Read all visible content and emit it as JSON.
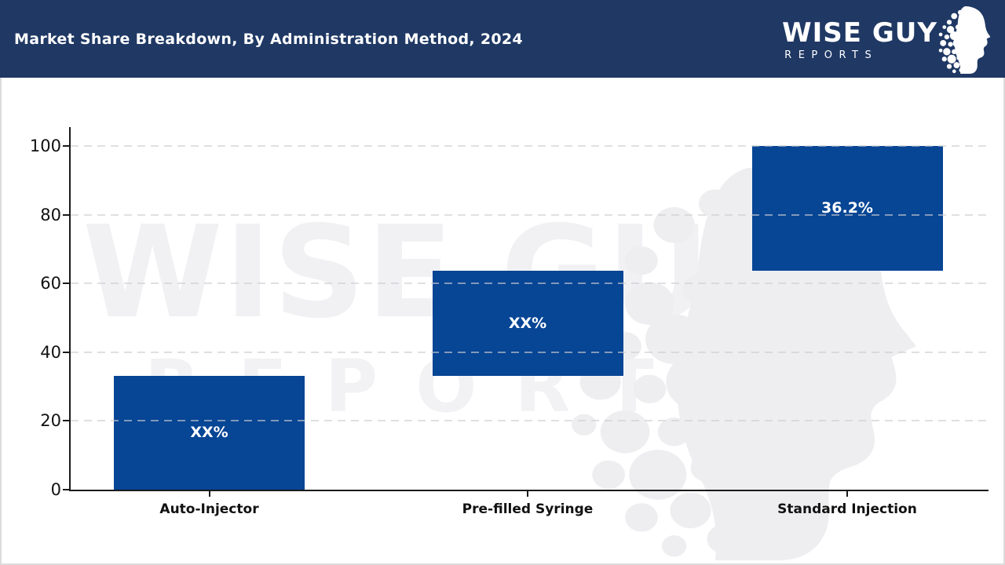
{
  "header": {
    "title": "Market Share Breakdown, By Administration Method, 2024",
    "logo": {
      "line1": "WISE GUY",
      "line2": "REPORTS"
    }
  },
  "watermark": {
    "line1": "WISE GUY",
    "line2": "REPORTS"
  },
  "chart_data": {
    "type": "waterfall",
    "title": "Market Share Breakdown, By Administration Method, 2024",
    "categories": [
      "Auto-Injector",
      "Pre-filled Syringe",
      "Standard Injection"
    ],
    "segments": [
      {
        "category": "Auto-Injector",
        "label": "XX%",
        "start": 0,
        "end": 33.2
      },
      {
        "category": "Pre-filled Syringe",
        "label": "XX%",
        "start": 33.2,
        "end": 63.8
      },
      {
        "category": "Standard Injection",
        "label": "36.2%",
        "start": 63.8,
        "end": 100
      }
    ],
    "ylim": [
      0,
      100
    ],
    "yticks": [
      0,
      20,
      40,
      60,
      80,
      100
    ],
    "grid": "dashed horizontal, drawn above bars",
    "legend": "none",
    "bar_color": "#074595",
    "bar_label_color": "#ffffff"
  },
  "colors": {
    "header_bg": "#1f3864",
    "bar": "#074595",
    "axis": "#1a1a1a",
    "grid": "#d9d9d9",
    "frame": "#dcdcdc",
    "watermark": "#f1f1f4",
    "title_text": "#ffffff"
  }
}
